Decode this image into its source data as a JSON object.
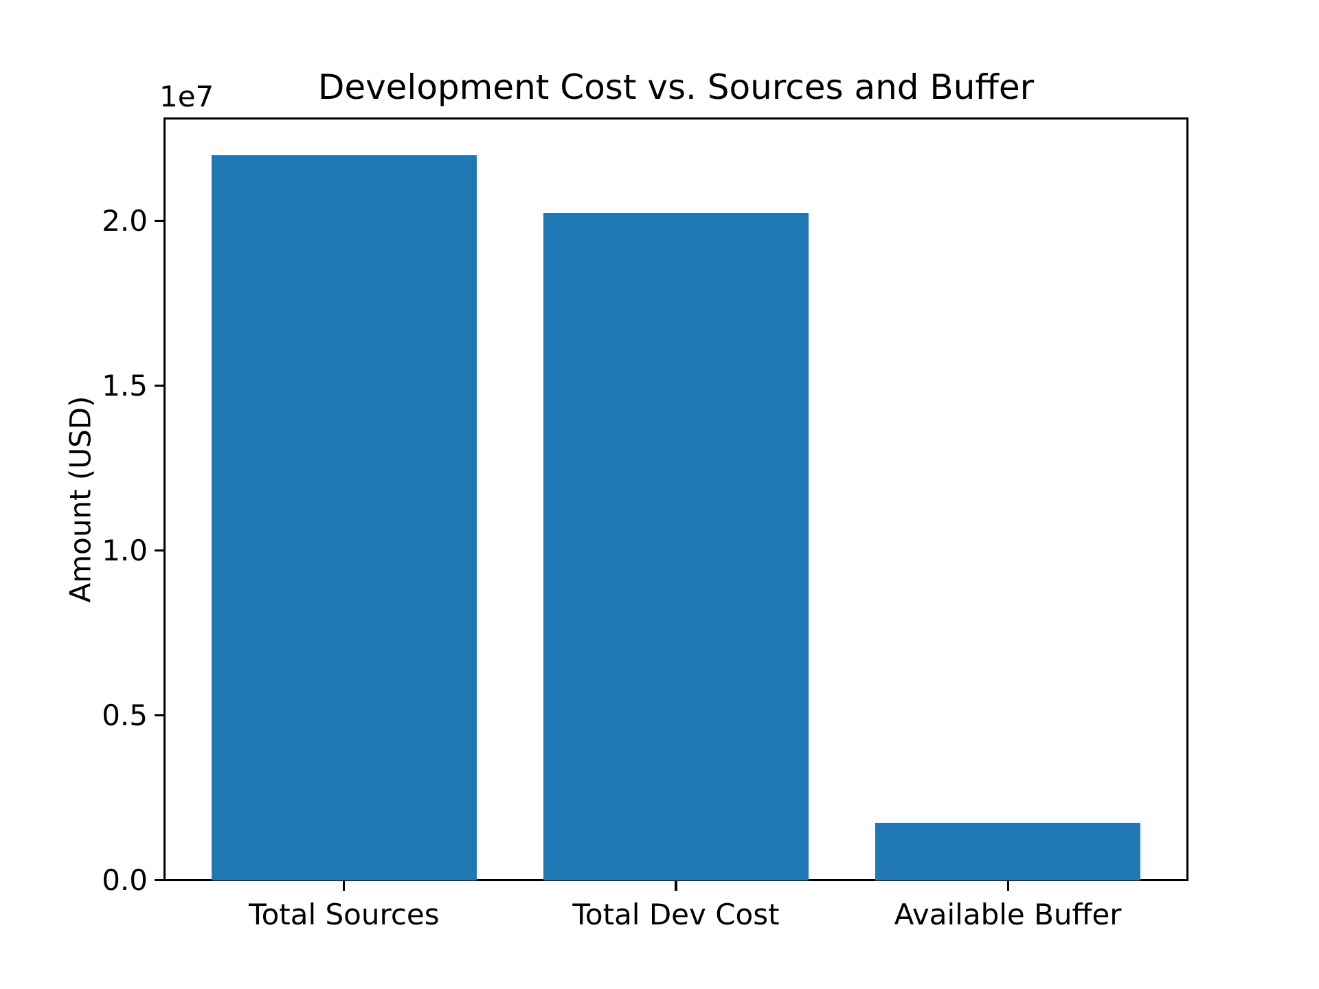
{
  "chart_data": {
    "type": "bar",
    "title": "Development Cost vs. Sources and Buffer",
    "ylabel": "Amount (USD)",
    "xlabel": "",
    "y_offset_text": "1e7",
    "categories": [
      "Total Sources",
      "Total Dev Cost",
      "Available Buffer"
    ],
    "values": [
      22000000,
      20250000,
      1750000
    ],
    "bar_color": "#1f77b4",
    "ylim": [
      0,
      23100000
    ],
    "yticks": [
      {
        "value": 0,
        "label": "0.0"
      },
      {
        "value": 5000000,
        "label": "0.5"
      },
      {
        "value": 10000000,
        "label": "1.0"
      },
      {
        "value": 15000000,
        "label": "1.5"
      },
      {
        "value": 20000000,
        "label": "2.0"
      }
    ],
    "bar_width_fraction": 0.8,
    "grid": false,
    "legend": "none"
  }
}
